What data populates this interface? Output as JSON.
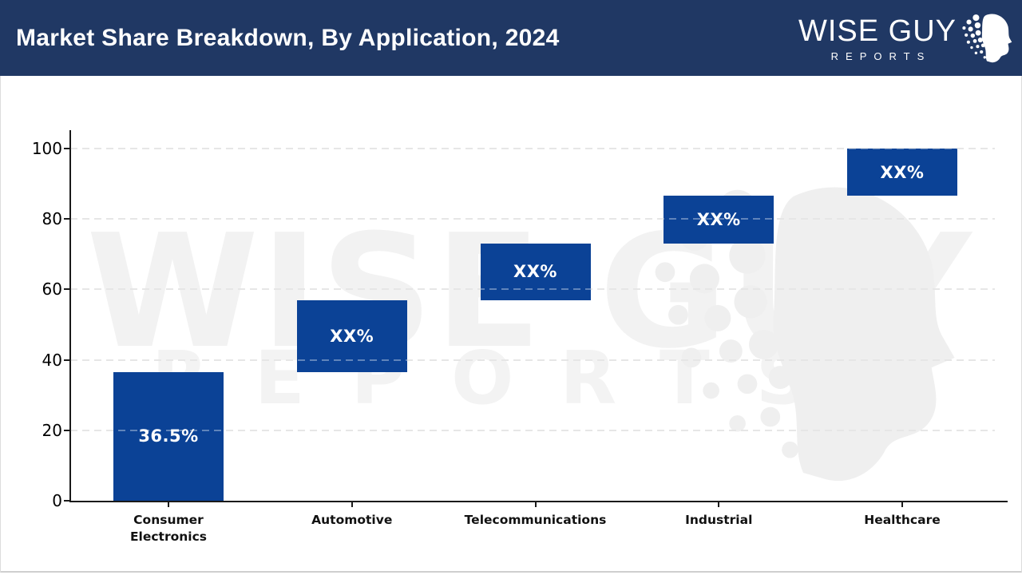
{
  "header": {
    "title": "Market Share Breakdown, By Application, 2024",
    "bg_color": "#203864",
    "logo": {
      "line1": "WISE GUY",
      "line2": "REPORTS"
    }
  },
  "watermark": {
    "line1": "WISE GUY",
    "line2": "REPORTS"
  },
  "chart_data": {
    "type": "bar",
    "subtype": "floating-waterfall",
    "title": "Market Share Breakdown, By Application, 2024",
    "categories": [
      "Consumer\nElectronics",
      "Automotive",
      "Telecommunications",
      "Industrial",
      "Healthcare"
    ],
    "segments": [
      {
        "category": "Consumer Electronics",
        "start": 0,
        "end": 36.5,
        "label": "36.5%"
      },
      {
        "category": "Automotive",
        "start": 36.5,
        "end": 57,
        "label": "XX%"
      },
      {
        "category": "Telecommunications",
        "start": 57,
        "end": 73,
        "label": "XX%"
      },
      {
        "category": "Industrial",
        "start": 73,
        "end": 86.5,
        "label": "XX%"
      },
      {
        "category": "Healthcare",
        "start": 86.5,
        "end": 100,
        "label": "XX%"
      }
    ],
    "yticks": [
      0,
      20,
      40,
      60,
      80,
      100
    ],
    "ylim": [
      0,
      105
    ],
    "xlabel": "",
    "ylabel": "",
    "grid": "horizontal-dashed",
    "legend": "none",
    "bar_color": "#0b4296",
    "bar_label_color": "#ffffff",
    "axis_color": "#1a1a1a",
    "gridline_color": "#d9d9d9"
  }
}
